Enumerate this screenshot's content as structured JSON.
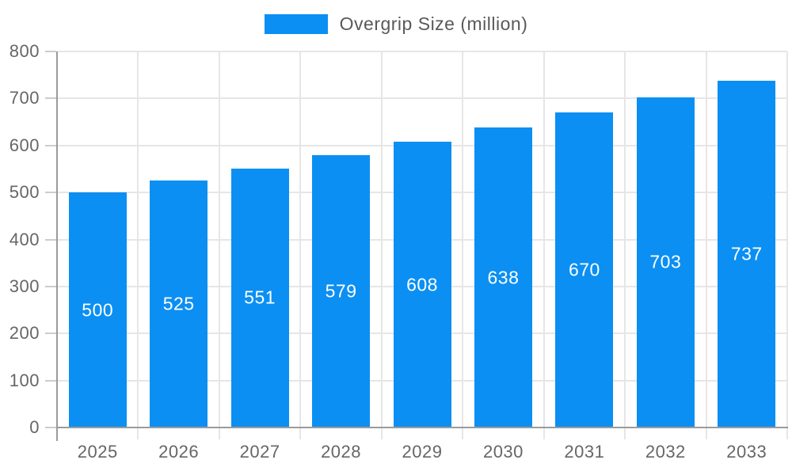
{
  "chart_data": {
    "type": "bar",
    "title": "",
    "legend": "Overgrip Size (million)",
    "legend_position": "top",
    "categories": [
      "2025",
      "2026",
      "2027",
      "2028",
      "2029",
      "2030",
      "2031",
      "2032",
      "2033"
    ],
    "series": [
      {
        "name": "Overgrip Size (million)",
        "values": [
          500,
          525,
          551,
          579,
          608,
          638,
          670,
          703,
          737
        ]
      }
    ],
    "data_labels": [
      "500",
      "525",
      "551",
      "579",
      "608",
      "638",
      "670",
      "703",
      "737"
    ],
    "xlabel": "",
    "ylabel": "",
    "ylim": [
      0,
      800
    ],
    "ytick_step": 100,
    "yticks": [
      "0",
      "100",
      "200",
      "300",
      "400",
      "500",
      "600",
      "700",
      "800"
    ],
    "grid": true
  },
  "colors": {
    "bar": "#0b8ff3",
    "bar_label_text": "#ffffff",
    "grid_line": "#e6e6e6",
    "axis_line": "#9b9b9b",
    "tick_mark": "#cccccc",
    "axis_text": "#666666",
    "legend_text": "#595959",
    "background": "#ffffff"
  }
}
